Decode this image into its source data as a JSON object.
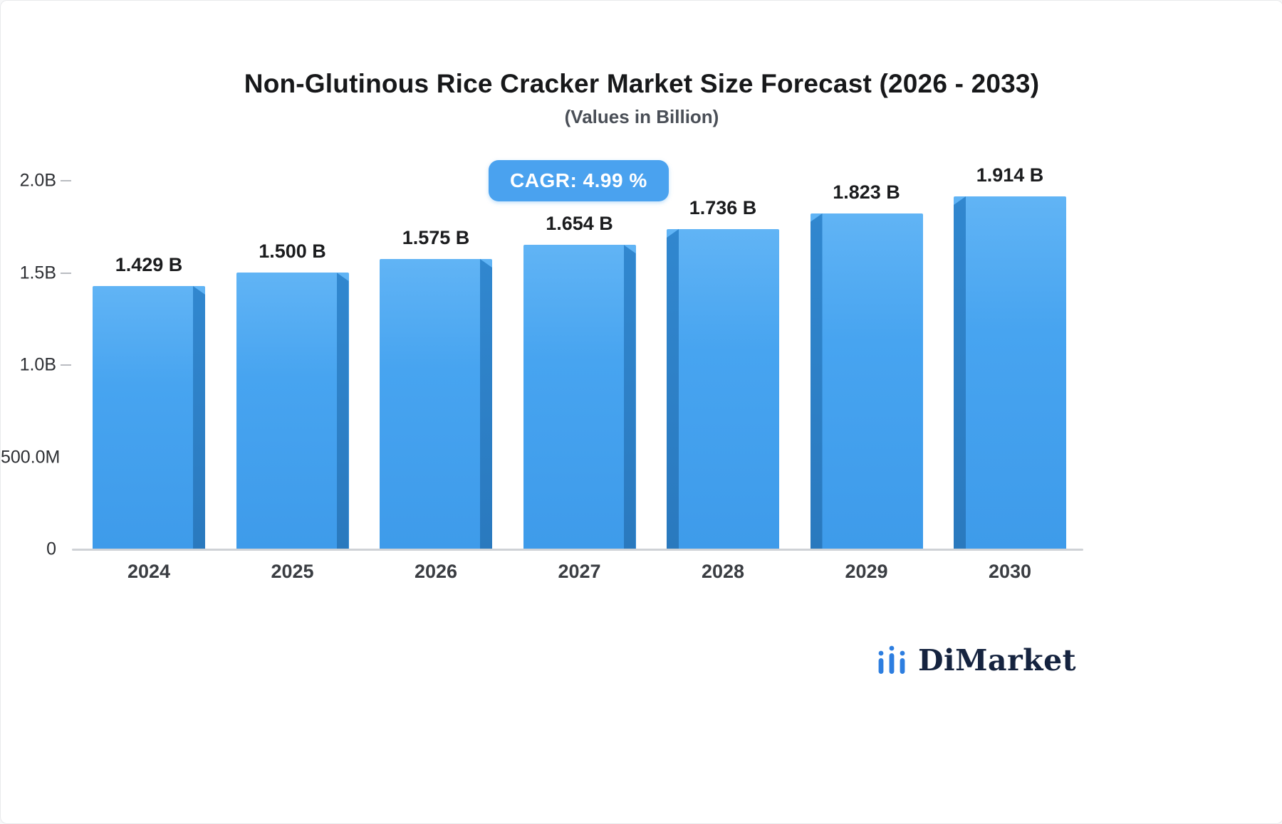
{
  "title": "Non-Glutinous Rice Cracker Market Size Forecast (2026 - 2033)",
  "subtitle": "(Values in Billion)",
  "cagr_badge": "CAGR: 4.99 %",
  "brand": {
    "name": "DiMarket"
  },
  "chart_data": {
    "type": "bar",
    "categories": [
      "2024",
      "2025",
      "2026",
      "2027",
      "2028",
      "2029",
      "2030"
    ],
    "values": [
      1.429,
      1.5,
      1.575,
      1.654,
      1.736,
      1.823,
      1.914
    ],
    "value_labels": [
      "1.429 B",
      "1.500 B",
      "1.575 B",
      "1.654 B",
      "1.736 B",
      "1.823 B",
      "1.914 B"
    ],
    "title": "Non-Glutinous Rice Cracker Market Size Forecast (2026 - 2033)",
    "xlabel": "",
    "ylabel": "",
    "ylim": [
      0,
      2.0
    ],
    "yticks": [
      {
        "label": "2.0B",
        "value": 2.0,
        "dash": true
      },
      {
        "label": "1.5B",
        "value": 1.5,
        "dash": true
      },
      {
        "label": "1.0B",
        "value": 1.0,
        "dash": true
      },
      {
        "label": "500.0M",
        "value": 0.5,
        "dash": false
      },
      {
        "label": "0",
        "value": 0,
        "dash": false
      }
    ],
    "grid": false,
    "legend": false,
    "bar_color_top": "#61B4F5",
    "bar_color_bottom": "#3E9BEA",
    "bar_side_color": "#2A79BE",
    "badge_color": "#4AA2EF"
  }
}
